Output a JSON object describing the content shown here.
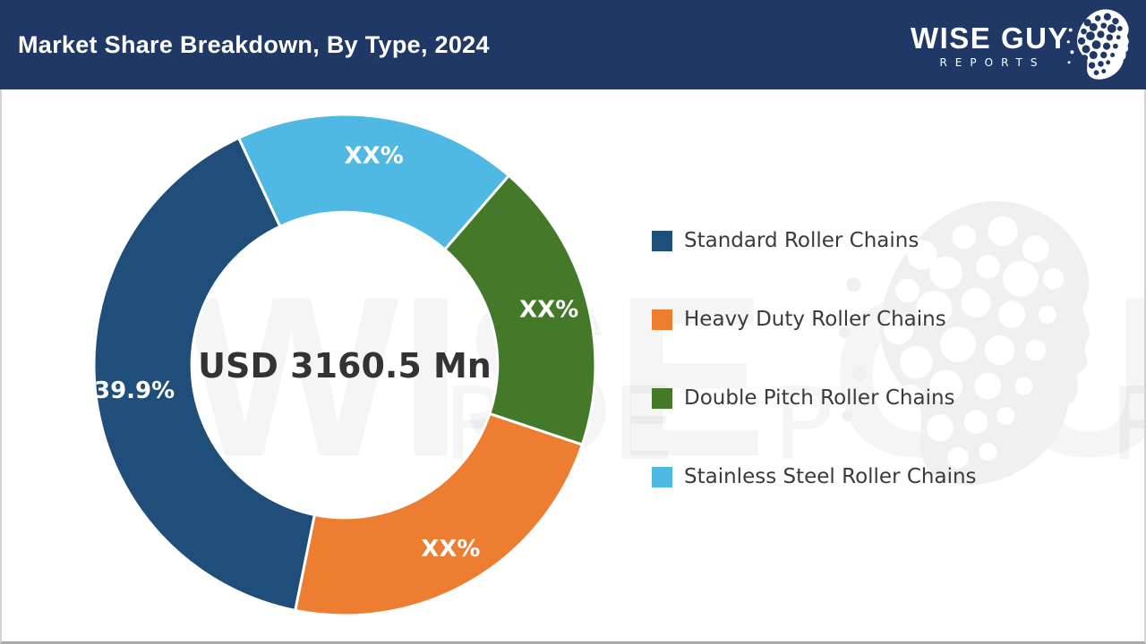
{
  "header": {
    "title": "Market Share Breakdown, By Type, 2024",
    "logo": {
      "name": "WISE GUY",
      "subtitle": "REPORTS"
    }
  },
  "watermark": {
    "line1": "WISE GUY",
    "line2": "REPORTS"
  },
  "chart_data": {
    "type": "pie",
    "subtype": "donut",
    "title": "Market Share Breakdown, By Type, 2024",
    "center_label": "USD 3160.5 Mn",
    "start_angle_deg": 115,
    "direction": "counterclockwise",
    "inner_radius_ratio": 0.61,
    "label_radius_ratio": 0.845,
    "gap_color": "#ffffff",
    "legend_position": "right",
    "header_color": "#1F3866",
    "segments": [
      {
        "name": "Standard Roller Chains",
        "value_pct": 39.9,
        "display_label": "39.9%",
        "color": "#1F4E7A"
      },
      {
        "name": "Heavy Duty Roller Chains",
        "value_pct": 23.0,
        "display_label": "XX%",
        "color": "#ED7D31"
      },
      {
        "name": "Double Pitch Roller Chains",
        "value_pct": 18.8,
        "display_label": "XX%",
        "color": "#44792A"
      },
      {
        "name": "Stainless Steel Roller Chains",
        "value_pct": 18.3,
        "display_label": "XX%",
        "color": "#4FB8E3"
      }
    ]
  }
}
